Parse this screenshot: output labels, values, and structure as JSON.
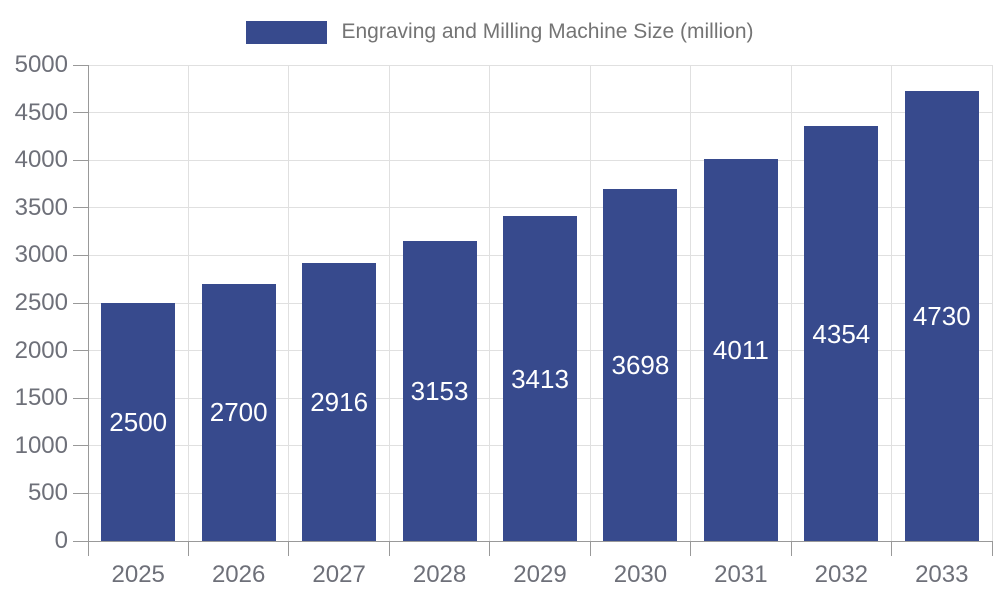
{
  "legend": {
    "label": "Engraving and Milling Machine Size (million)"
  },
  "colors": {
    "bar": "#374A8D",
    "grid": "#E0E0E0",
    "axis": "#999999",
    "tick_label": "#6E7079",
    "legend_label": "#747474",
    "value_label": "#FFFFFF"
  },
  "chart_data": {
    "type": "bar",
    "title": "Engraving and Milling Machine Size (million)",
    "categories": [
      "2025",
      "2026",
      "2027",
      "2028",
      "2029",
      "2030",
      "2031",
      "2032",
      "2033"
    ],
    "values": [
      2500,
      2700,
      2916,
      3153,
      3413,
      3698,
      4011,
      4354,
      4730
    ],
    "xlabel": "",
    "ylabel": "",
    "ylim": [
      0,
      5000
    ],
    "ytick_step": 500,
    "ytick_labels": [
      "0",
      "500",
      "1000",
      "1500",
      "2000",
      "2500",
      "3000",
      "3500",
      "4000",
      "4500",
      "5000"
    ],
    "grid": true,
    "legend_position": "top",
    "value_labels_inside_bars": true
  }
}
